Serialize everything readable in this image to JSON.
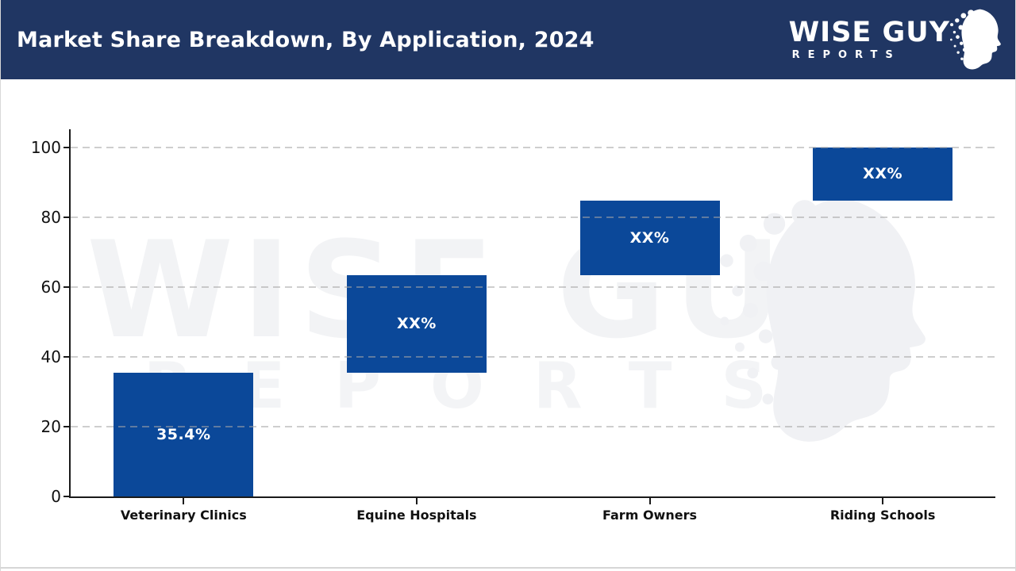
{
  "header": {
    "title": "Market Share Breakdown, By Application, 2024",
    "logo": {
      "line1": "WISE GUY",
      "line2": "REPORTS"
    }
  },
  "watermark": {
    "line1": "WISE GUY",
    "line2": "REPORTS"
  },
  "chart_data": {
    "type": "bar",
    "subtype": "floating-segment-waterfall",
    "title": "Market Share Breakdown, By Application, 2024",
    "categories": [
      "Veterinary Clinics",
      "Equine Hospitals",
      "Farm Owners",
      "Riding Schools"
    ],
    "segments": [
      {
        "category": "Veterinary Clinics",
        "start": 0,
        "end": 35.4,
        "label": "35.4%"
      },
      {
        "category": "Equine Hospitals",
        "start": 35.4,
        "end": 63.5,
        "label": "XX%"
      },
      {
        "category": "Farm Owners",
        "start": 63.5,
        "end": 84.8,
        "label": "XX%"
      },
      {
        "category": "Riding Schools",
        "start": 84.8,
        "end": 100,
        "label": "XX%"
      }
    ],
    "yticks": [
      0,
      20,
      40,
      60,
      80,
      100
    ],
    "ylim": [
      0,
      105
    ],
    "xlabel": "",
    "ylabel": "",
    "grid": "horizontal-dashed-over-bars",
    "legend": "none"
  },
  "colors": {
    "header_bg": "#203663",
    "bar": "#0b4899",
    "bar_label": "#ffffff",
    "axis": "#1a1a1a",
    "grid": "#c9c9c9",
    "watermark": "#f2f3f5"
  }
}
